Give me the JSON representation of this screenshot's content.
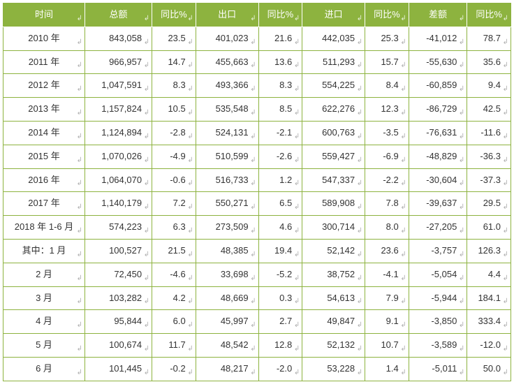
{
  "colors": {
    "header_bg": "#8db33f",
    "header_text": "#ffffff",
    "border": "#8db33f",
    "header_inner_border": "#ffffff",
    "cell_text": "#333333",
    "mark": "#b0b0b0",
    "background": "#ffffff"
  },
  "table": {
    "type": "table",
    "columns": [
      {
        "key": "time",
        "label": "时间",
        "class": "col-time",
        "align": "center"
      },
      {
        "key": "total",
        "label": "总额",
        "class": "col-total",
        "align": "right"
      },
      {
        "key": "t_yoy",
        "label": "同比%",
        "class": "col-yoy",
        "align": "right"
      },
      {
        "key": "export",
        "label": "出口",
        "class": "col-exp",
        "align": "right"
      },
      {
        "key": "e_yoy",
        "label": "同比%",
        "class": "col-yoy",
        "align": "right"
      },
      {
        "key": "import",
        "label": "进口",
        "class": "col-imp",
        "align": "right"
      },
      {
        "key": "i_yoy",
        "label": "同比%",
        "class": "col-yoy",
        "align": "right"
      },
      {
        "key": "diff",
        "label": "差额",
        "class": "col-diff",
        "align": "right"
      },
      {
        "key": "d_yoy",
        "label": "同比%",
        "class": "col-yoy",
        "align": "right"
      }
    ],
    "rows": [
      {
        "time": "2010 年",
        "total": "843,058",
        "t_yoy": "23.5",
        "export": "401,023",
        "e_yoy": "21.6",
        "import": "442,035",
        "i_yoy": "25.3",
        "diff": "-41,012",
        "d_yoy": "78.7"
      },
      {
        "time": "2011 年",
        "total": "966,957",
        "t_yoy": "14.7",
        "export": "455,663",
        "e_yoy": "13.6",
        "import": "511,293",
        "i_yoy": "15.7",
        "diff": "-55,630",
        "d_yoy": "35.6"
      },
      {
        "time": "2012 年",
        "total": "1,047,591",
        "t_yoy": "8.3",
        "export": "493,366",
        "e_yoy": "8.3",
        "import": "554,225",
        "i_yoy": "8.4",
        "diff": "-60,859",
        "d_yoy": "9.4"
      },
      {
        "time": "2013 年",
        "total": "1,157,824",
        "t_yoy": "10.5",
        "export": "535,548",
        "e_yoy": "8.5",
        "import": "622,276",
        "i_yoy": "12.3",
        "diff": "-86,729",
        "d_yoy": "42.5"
      },
      {
        "time": "2014 年",
        "total": "1,124,894",
        "t_yoy": "-2.8",
        "export": "524,131",
        "e_yoy": "-2.1",
        "import": "600,763",
        "i_yoy": "-3.5",
        "diff": "-76,631",
        "d_yoy": "-11.6"
      },
      {
        "time": "2015 年",
        "total": "1,070,026",
        "t_yoy": "-4.9",
        "export": "510,599",
        "e_yoy": "-2.6",
        "import": "559,427",
        "i_yoy": "-6.9",
        "diff": "-48,829",
        "d_yoy": "-36.3"
      },
      {
        "time": "2016 年",
        "total": "1,064,070",
        "t_yoy": "-0.6",
        "export": "516,733",
        "e_yoy": "1.2",
        "import": "547,337",
        "i_yoy": "-2.2",
        "diff": "-30,604",
        "d_yoy": "-37.3"
      },
      {
        "time": "2017 年",
        "total": "1,140,179",
        "t_yoy": "7.2",
        "export": "550,271",
        "e_yoy": "6.5",
        "import": "589,908",
        "i_yoy": "7.8",
        "diff": "-39,637",
        "d_yoy": "29.5"
      },
      {
        "time": "2018 年 1-6 月",
        "total": "574,223",
        "t_yoy": "6.3",
        "export": "273,509",
        "e_yoy": "4.6",
        "import": "300,714",
        "i_yoy": "8.0",
        "diff": "-27,205",
        "d_yoy": "61.0"
      },
      {
        "time": "其中：1 月",
        "total": "100,527",
        "t_yoy": "21.5",
        "export": "48,385",
        "e_yoy": "19.4",
        "import": "52,142",
        "i_yoy": "23.6",
        "diff": "-3,757",
        "d_yoy": "126.3"
      },
      {
        "time": "2 月",
        "total": "72,450",
        "t_yoy": "-4.6",
        "export": "33,698",
        "e_yoy": "-5.2",
        "import": "38,752",
        "i_yoy": "-4.1",
        "diff": "-5,054",
        "d_yoy": "4.4"
      },
      {
        "time": "3 月",
        "total": "103,282",
        "t_yoy": "4.2",
        "export": "48,669",
        "e_yoy": "0.3",
        "import": "54,613",
        "i_yoy": "7.9",
        "diff": "-5,944",
        "d_yoy": "184.1"
      },
      {
        "time": "4 月",
        "total": "95,844",
        "t_yoy": "6.0",
        "export": "45,997",
        "e_yoy": "2.7",
        "import": "49,847",
        "i_yoy": "9.1",
        "diff": "-3,850",
        "d_yoy": "333.4"
      },
      {
        "time": "5 月",
        "total": "100,674",
        "t_yoy": "11.7",
        "export": "48,542",
        "e_yoy": "12.8",
        "import": "52,132",
        "i_yoy": "10.7",
        "diff": "-3,589",
        "d_yoy": "-12.0"
      },
      {
        "time": "6 月",
        "total": "101,445",
        "t_yoy": "-0.2",
        "export": "48,217",
        "e_yoy": "-2.0",
        "import": "53,228",
        "i_yoy": "1.4",
        "diff": "-5,011",
        "d_yoy": "50.0"
      }
    ],
    "cell_mark": "↲",
    "row_end_mark": "←"
  }
}
